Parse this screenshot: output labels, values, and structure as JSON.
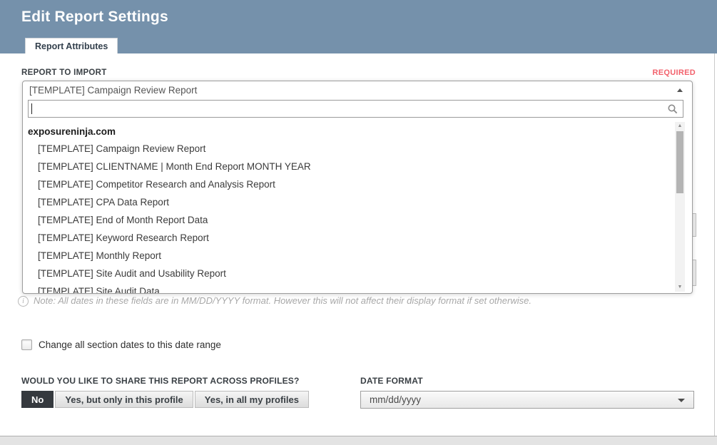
{
  "header": {
    "title": "Edit Report Settings",
    "tab": "Report Attributes"
  },
  "report_to_import": {
    "label": "REPORT TO IMPORT",
    "required_badge": "REQUIRED",
    "selected_value": "[TEMPLATE] Campaign Review Report",
    "search_value": "",
    "search_placeholder": "",
    "group_label": "exposureninja.com",
    "options": [
      "[TEMPLATE] Campaign Review Report",
      "[TEMPLATE] CLIENTNAME | Month End Report MONTH YEAR",
      "[TEMPLATE] Competitor Research and Analysis Report",
      "[TEMPLATE] CPA Data Report",
      "[TEMPLATE] End of Month Report Data",
      "[TEMPLATE] Keyword Research Report",
      "[TEMPLATE] Monthly Report",
      "[TEMPLATE] Site Audit and Usability Report",
      "[TEMPLATE] Site Audit Data"
    ]
  },
  "note": {
    "text": "Note: All dates in these fields are in MM/DD/YYYY format. However this will not affect their display format if set otherwise.",
    "icon": "info-circled-i"
  },
  "checkbox": {
    "label": "Change all section dates to this date range",
    "checked": false
  },
  "share": {
    "label": "WOULD YOU LIKE TO SHARE THIS REPORT ACROSS PROFILES?",
    "options": [
      "No",
      "Yes, but only in this profile",
      "Yes, in all my profiles"
    ],
    "selected": "No"
  },
  "date_format": {
    "label": "DATE FORMAT",
    "value": "mm/dd/yyyy"
  },
  "icons": {
    "combobox_state": "chevron-up",
    "search": "magnifying-glass",
    "scroll_up": "triangle-up",
    "scroll_down": "triangle-down",
    "date_select": "chevron-down"
  },
  "colors": {
    "header_bg": "#7591ab",
    "required_text": "#f2616c",
    "selected_share_button_bg": "#35393e",
    "footer_band_bg": "#e3e3e3"
  }
}
